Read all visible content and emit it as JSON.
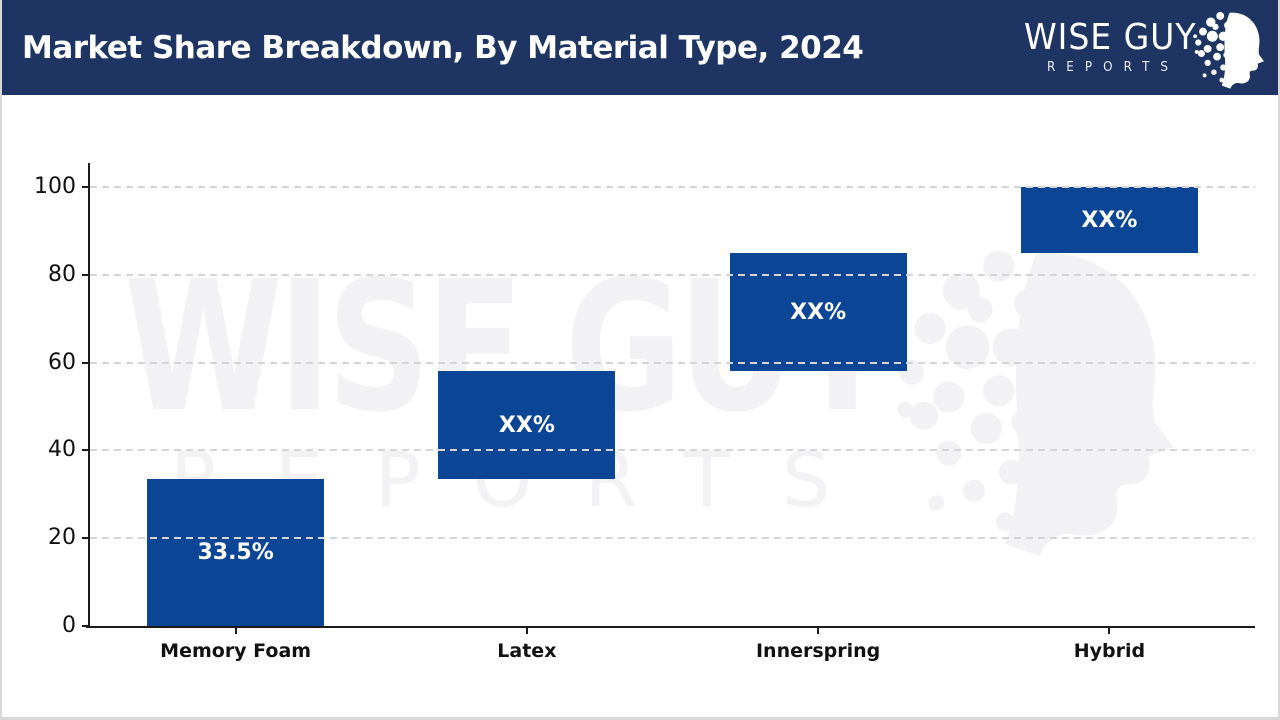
{
  "header": {
    "title": "Market Share Breakdown, By Material Type, 2024",
    "bg_color": "#1e3563",
    "logo": {
      "wordmark": "WISE GUY",
      "tagline": "REPORTS"
    }
  },
  "watermark": {
    "wordmark": "WISE GUY",
    "tagline": "REPORTS"
  },
  "chart_data": {
    "type": "bar",
    "subtype": "waterfall",
    "title": "Market Share Breakdown, By Material Type, 2024",
    "categories": [
      "Memory Foam",
      "Latex",
      "Innerspring",
      "Hybrid"
    ],
    "segments": [
      {
        "category": "Memory Foam",
        "start": 0,
        "end": 33.5,
        "value": 33.5,
        "label": "33.5%"
      },
      {
        "category": "Latex",
        "start": 33.5,
        "end": 58,
        "value": 24.5,
        "label": "XX%"
      },
      {
        "category": "Innerspring",
        "start": 58,
        "end": 85,
        "value": 27,
        "label": "XX%"
      },
      {
        "category": "Hybrid",
        "start": 85,
        "end": 100,
        "value": 15,
        "label": "XX%"
      }
    ],
    "yticks": [
      0,
      20,
      40,
      60,
      80,
      100
    ],
    "ylim": [
      0,
      105.5
    ],
    "xlabel": "",
    "ylabel": "",
    "bar_color": "#0b4596",
    "bar_label_color": "#ffffff",
    "grid": {
      "axis": "y",
      "style": "dashed",
      "color": "#d5d5d5",
      "above_bars": true
    },
    "legend": null
  }
}
